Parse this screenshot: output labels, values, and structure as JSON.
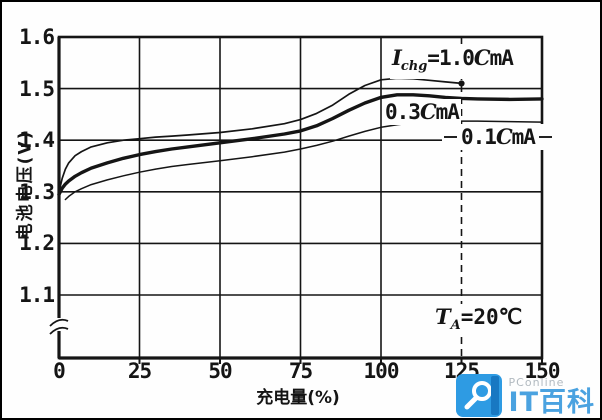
{
  "chart_data": {
    "type": "line",
    "title": "",
    "xlabel": "充电量(%)",
    "ylabel": "电池电压(V)",
    "x_ticks": [
      0,
      25,
      50,
      75,
      100,
      125,
      150
    ],
    "y_ticks": [
      1.6,
      1.5,
      1.4,
      1.3,
      1.2,
      1.1
    ],
    "y_origin_label": "0",
    "xlim": [
      0,
      150
    ],
    "ylim_visible": [
      1.1,
      1.6
    ],
    "axis_break": true,
    "grid": true,
    "dashed_x_gridlines": [
      125
    ],
    "annotation": "TA=20℃",
    "legend_position": "inline-labels",
    "x": [
      0,
      1,
      2,
      3,
      5,
      7,
      10,
      15,
      20,
      25,
      30,
      35,
      40,
      50,
      60,
      70,
      75,
      80,
      85,
      90,
      95,
      100,
      105,
      110,
      115,
      120,
      125,
      130,
      140,
      150
    ],
    "series": [
      {
        "name": "Ichg=1.0CmA",
        "end_dot": true,
        "values": [
          1.3,
          1.326,
          1.344,
          1.356,
          1.37,
          1.378,
          1.387,
          1.395,
          1.4,
          1.403,
          1.406,
          1.408,
          1.41,
          1.415,
          1.422,
          1.432,
          1.44,
          1.452,
          1.468,
          1.489,
          1.506,
          1.517,
          1.52,
          1.519,
          1.516,
          1.513,
          1.51,
          null,
          null,
          null
        ]
      },
      {
        "name": "0.3CmA",
        "end_dot": false,
        "values": [
          1.295,
          1.307,
          1.315,
          1.321,
          1.33,
          1.337,
          1.346,
          1.356,
          1.365,
          1.372,
          1.378,
          1.383,
          1.387,
          1.395,
          1.403,
          1.412,
          1.418,
          1.428,
          1.442,
          1.458,
          1.472,
          1.483,
          1.488,
          1.488,
          1.486,
          1.483,
          1.481,
          1.48,
          1.479,
          1.48
        ]
      },
      {
        "name": "0.1CmA",
        "end_dot": false,
        "values": [
          null,
          null,
          1.285,
          1.291,
          1.3,
          1.306,
          1.314,
          1.323,
          1.331,
          1.338,
          1.344,
          1.349,
          1.353,
          1.36,
          1.368,
          1.377,
          1.383,
          1.39,
          1.398,
          1.408,
          1.417,
          1.425,
          1.43,
          1.434,
          1.436,
          1.437,
          1.437,
          1.437,
          1.436,
          1.435
        ]
      }
    ]
  },
  "curve_labels": {
    "c1": {
      "sym": "I",
      "sub": "chg",
      "eq": "=1.0",
      "C": "C",
      "unit": "mA"
    },
    "c2": {
      "val": "0.3",
      "C": "C",
      "unit": "mA"
    },
    "c3": {
      "val": "0.1",
      "C": "C",
      "unit": "mA"
    }
  },
  "annotation": {
    "sym": "T",
    "sub": "A",
    "rest": "=20℃"
  },
  "watermark": {
    "brand": "PConline",
    "product": "IT百科",
    "logo_color": "#2e9be3",
    "logo_fold_color": "#1878c2",
    "product_color": "#4aa2e0",
    "brand_color": "#b2bac0"
  },
  "colors": {
    "ink": "#151515",
    "background": "#fefefe"
  }
}
